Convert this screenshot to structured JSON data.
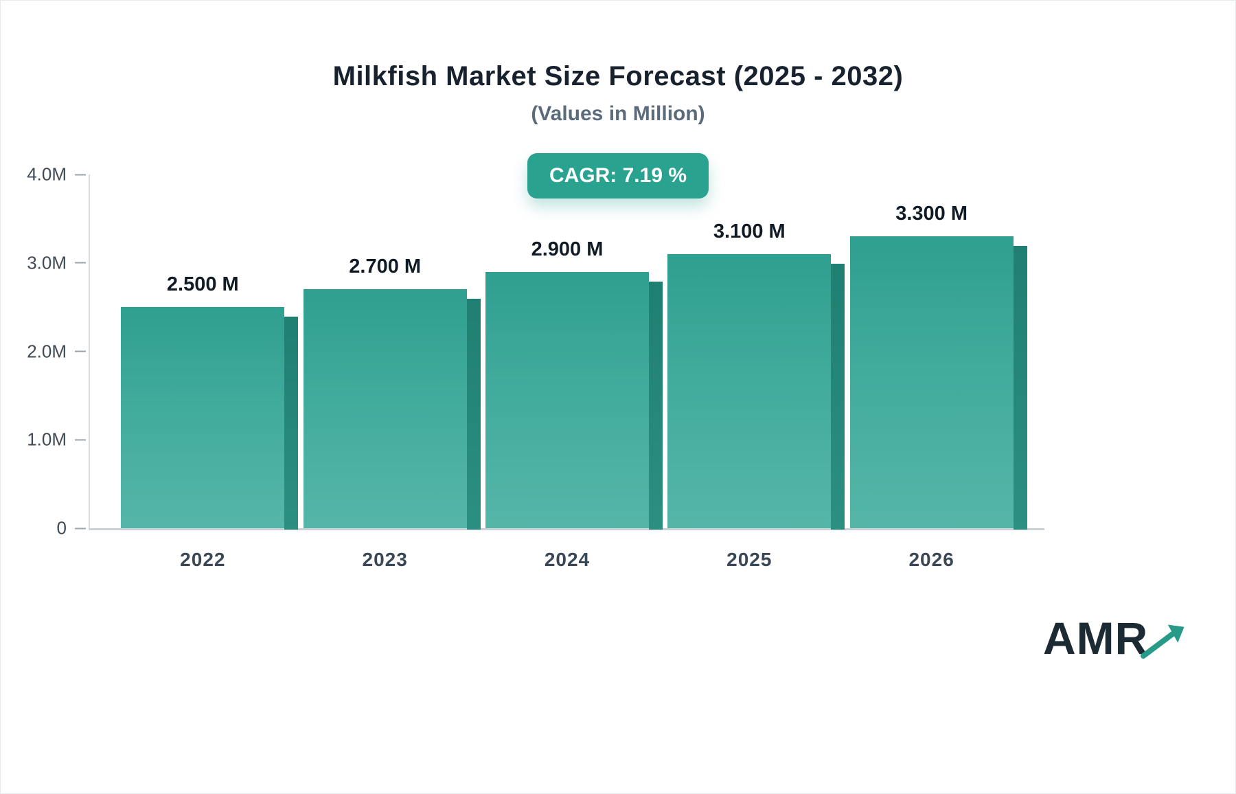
{
  "title": "Milkfish Market Size Forecast (2025 - 2032)",
  "subtitle": "(Values in Million)",
  "cagr_badge": "CAGR: 7.19 %",
  "logo_text": "AMR",
  "colors": {
    "bar_top": "#2f9f90",
    "bar_bottom": "#55b6a8",
    "bar_side": "#1f7f72",
    "badge_bg": "#29a390",
    "title_text": "#18222e",
    "subtitle_text": "#5b6b7c",
    "axis_line": "#cdd1d5"
  },
  "chart_data": {
    "type": "bar",
    "title": "Milkfish Market Size Forecast (2025 - 2032)",
    "subtitle": "(Values in Million)",
    "categories": [
      "2022",
      "2023",
      "2024",
      "2025",
      "2026"
    ],
    "values": [
      2.5,
      2.7,
      2.9,
      3.1,
      3.3
    ],
    "value_labels": [
      "2.500 M",
      "2.700 M",
      "2.900 M",
      "3.100 M",
      "3.300 M"
    ],
    "xlabel": "",
    "ylabel": "",
    "ylim": [
      0,
      4
    ],
    "yticks": [
      "4.0M",
      "3.0M",
      "2.0M",
      "1.0M",
      "0"
    ],
    "grid": false,
    "legend": false,
    "annotation": "CAGR: 7.19 %"
  }
}
